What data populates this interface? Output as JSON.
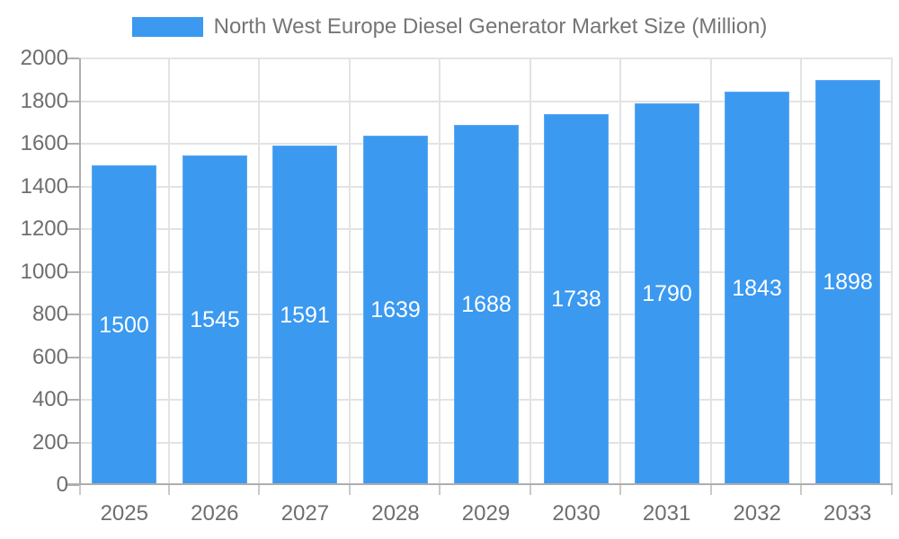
{
  "legend": {
    "label": "North West Europe Diesel Generator Market Size (Million)"
  },
  "chart_data": {
    "type": "bar",
    "title": "North West Europe Diesel Generator Market Size (Million)",
    "categories": [
      "2025",
      "2026",
      "2027",
      "2028",
      "2029",
      "2030",
      "2031",
      "2032",
      "2033"
    ],
    "values": [
      1500,
      1545,
      1591,
      1639,
      1688,
      1738,
      1790,
      1843,
      1898
    ],
    "value_labels": [
      "1500",
      "1545",
      "1591",
      "1639",
      "1688",
      "1738",
      "1790",
      "1843",
      "1898"
    ],
    "xlabel": "",
    "ylabel": "",
    "ylim": [
      0,
      2000
    ],
    "ytick_step": 200,
    "ytick_labels": [
      "0",
      "200",
      "400",
      "600",
      "800",
      "1000",
      "1200",
      "1400",
      "1600",
      "1800",
      "2000"
    ],
    "grid": true,
    "legend_position": "top"
  },
  "colors": {
    "bar_fill": "#3b99f0",
    "bar_edge": "#5fa9f1",
    "value_label": "#ffffff",
    "axis_text": "#6e6e6e",
    "legend_text": "#757575",
    "gridline": "#e3e3e3",
    "axis_line": "#aeaeae",
    "tick": "#c9c9c9",
    "background": "#ffffff"
  }
}
